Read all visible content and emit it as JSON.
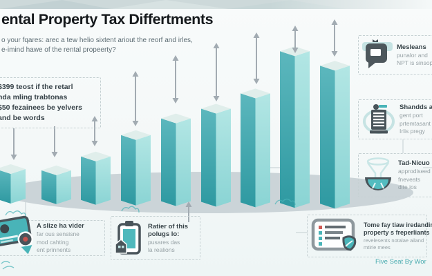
{
  "banner": {
    "title": "ental Property Tax Differtments",
    "subtitle_line1": "o your fqares: arec a tew helio sixtent ariout the reorf and irles,",
    "subtitle_line2": "e-imind hawe of the rental propeerty?"
  },
  "left_note": {
    "lines": [
      "$399 teost if the retarl",
      "nda mling trabtonas",
      "$50 fezainees be yelvers",
      "and be words"
    ]
  },
  "chart_data": {
    "type": "bar",
    "title": "",
    "categories": [
      "",
      "",
      "",
      "",
      "",
      "",
      "",
      "",
      ""
    ],
    "values": [
      43,
      42,
      63,
      95,
      120,
      135,
      158,
      220,
      200
    ],
    "value_note": "decorative isometric 3D bars; no axis labels or numeric values are visible, heights estimated in pixels",
    "xlabel": "",
    "ylabel": "",
    "grid": false,
    "legend": false,
    "style": "isometric-3d-teal-bars-on-gray-ellipse-shadow"
  },
  "right_panel": {
    "items": [
      {
        "icon": "speech-bubble-icon",
        "title": "Mesleans",
        "lines": [
          "punalor and",
          "NPT is sinsopt"
        ]
      },
      {
        "icon": "ledger-safe-icon",
        "title": "Shandds at",
        "lines": [
          "gent port",
          "prtemtasant",
          "Irlis pregy"
        ]
      },
      {
        "icon": "funnel-bowl-icon",
        "title": "Tad-Nicuo",
        "lines": [
          "approdiseed",
          "fneveats",
          "dite ios"
        ]
      }
    ]
  },
  "bottom_panel": {
    "items": [
      {
        "icon": "laptop-magnifier-icon",
        "title_lines": [
          "A slize ha vider"
        ],
        "lines": [
          "far ous sensisne",
          "mod cahting",
          "ent prinnents"
        ]
      },
      {
        "icon": "clipboard-house-icon",
        "title_lines": [
          "Ratier of this",
          "polugs lo:"
        ],
        "lines": [
          "pusares das",
          "la realions"
        ]
      },
      {
        "icon": "checklist-shield-icon",
        "title_lines": [
          "Tome fay tiaw iredanding",
          "property s freperliants"
        ],
        "lines": [
          "revelesents notalae ailand",
          "mtirie mees"
        ]
      }
    ]
  },
  "footer": {
    "credit": "Five Seat By Wor"
  },
  "colors": {
    "bar_left_top": "#5cb7bd",
    "bar_left_bottom": "#2e99a1",
    "bar_right_top": "#b2e6e4",
    "bar_right_bottom": "#8ad4d4",
    "bar_top_face": "#e0eeeb",
    "shadow": "#c6cfd4",
    "arrow": "#a2abb2",
    "connector": "#ccd5d8",
    "teal_accent": "#49b4b8",
    "dark_icon": "#49545a",
    "alert_red": "#cf5a55",
    "title_text": "#15191c",
    "body_text": "#97a2a6",
    "footer_text": "#4aacb0"
  }
}
